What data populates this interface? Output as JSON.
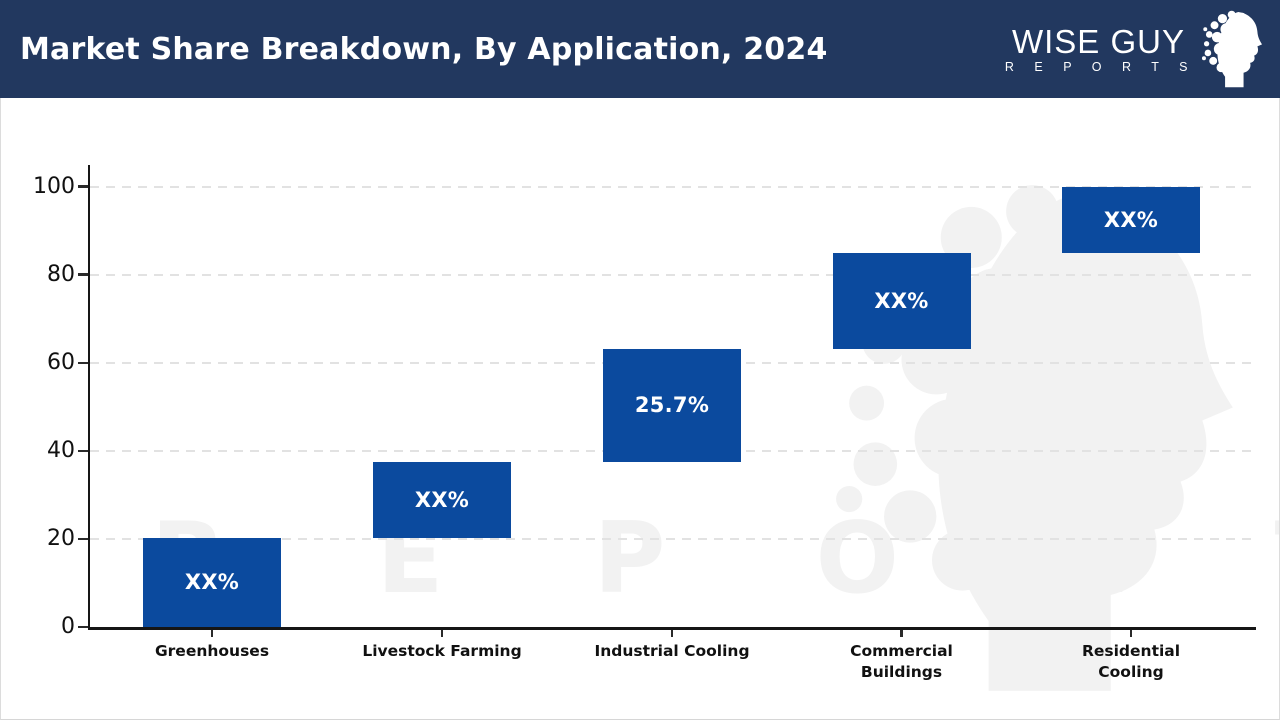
{
  "header": {
    "title": "Market Share Breakdown, By Application, 2024",
    "background": "#22385f",
    "logo": {
      "line1": "WISE GUY",
      "line2": "R E P O R T S"
    }
  },
  "watermark": {
    "line1": "WISE GUY",
    "line2": "REPORTS",
    "color": "#f2f2f2"
  },
  "chart_data": {
    "type": "bar",
    "subtype": "waterfall",
    "title": "Market Share Breakdown, By Application, 2024",
    "xlabel": "",
    "ylabel": "",
    "categories": [
      "Greenhouses",
      "Livestock Farming",
      "Industrial Cooling",
      "Commercial Buildings",
      "Residential Cooling"
    ],
    "x_tick_labels": [
      "Greenhouses",
      "Livestock Farming",
      "Industrial Cooling",
      "Commercial\nBuildings",
      "Residential\nCooling"
    ],
    "segments": [
      {
        "category": "Greenhouses",
        "start": 0,
        "end": 20.3,
        "value": 20.3,
        "label": "XX%"
      },
      {
        "category": "Livestock Farming",
        "start": 20.3,
        "end": 37.5,
        "value": 17.2,
        "label": "XX%"
      },
      {
        "category": "Industrial Cooling",
        "start": 37.5,
        "end": 63.2,
        "value": 25.7,
        "label": "25.7%"
      },
      {
        "category": "Commercial Buildings",
        "start": 63.2,
        "end": 84.9,
        "value": 21.7,
        "label": "XX%"
      },
      {
        "category": "Residential Cooling",
        "start": 84.9,
        "end": 100.0,
        "value": 15.1,
        "label": "XX%"
      }
    ],
    "y_ticks": [
      0,
      20,
      40,
      60,
      80,
      100
    ],
    "ylim": [
      0,
      105
    ],
    "grid": "horizontal-dashed",
    "legend": "none",
    "bar_color": "#0b4a9e",
    "grid_color": "#e2e2e2",
    "axis_color": "#161616",
    "label_text_color": "#ffffff"
  }
}
